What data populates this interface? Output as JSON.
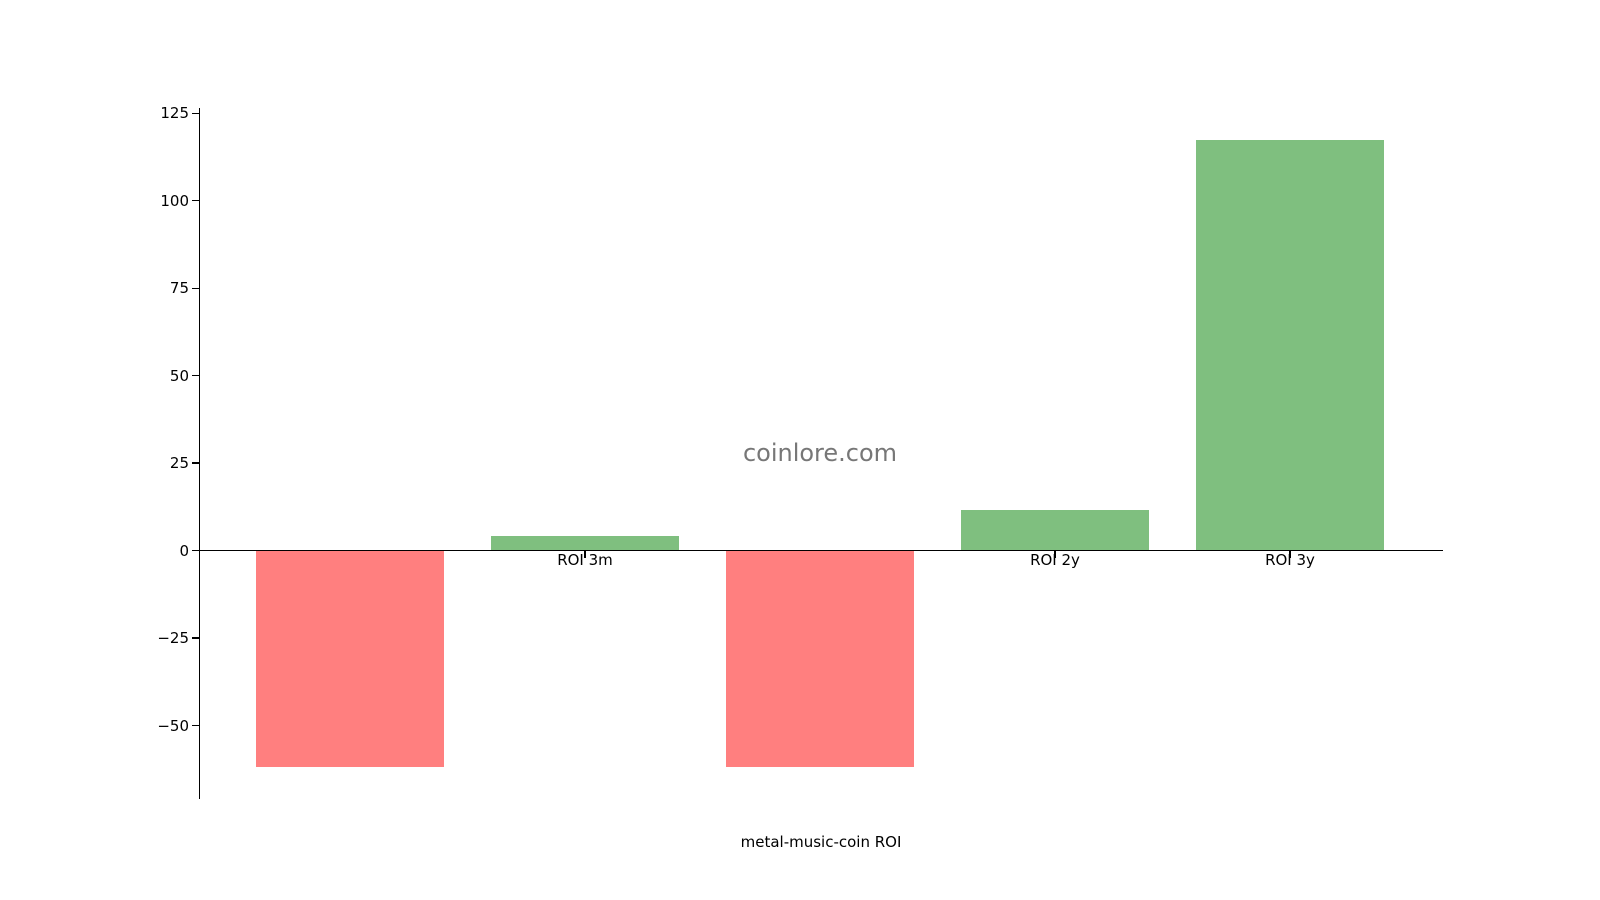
{
  "page": {
    "background": "#ffffff"
  },
  "watermark": {
    "text": "coinlore.com",
    "color": "#777777"
  },
  "chart_data": {
    "type": "bar",
    "title": "",
    "xlabel": "metal-music-coin ROI",
    "ylabel": "",
    "categories": [
      "",
      "ROI 3m",
      "",
      "ROI 2y",
      "ROI 3y"
    ],
    "values": [
      -62,
      4.3,
      -62,
      11.7,
      117.3
    ],
    "ylim": [
      -71,
      126.5
    ],
    "y_ticks": [
      125,
      100,
      75,
      50,
      25,
      0,
      -25,
      -50
    ],
    "grid": false,
    "legend": false,
    "x_axis_position": "zero",
    "colors": {
      "positive_bar": "rgba(0,128,0,0.5)",
      "negative_bar": "rgba(255,0,0,0.5)",
      "axis": "#000000",
      "tick_label": "#000000"
    }
  }
}
